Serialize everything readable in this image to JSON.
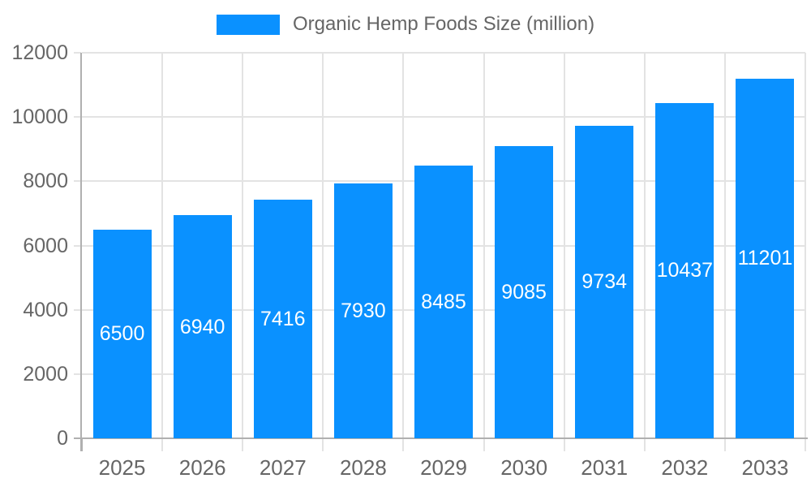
{
  "chart": {
    "legend_label": "Organic Hemp Foods Size (million)"
  },
  "chart_data": {
    "type": "bar",
    "title": "",
    "legend": [
      "Organic Hemp Foods Size (million)"
    ],
    "legend_position": "top",
    "categories": [
      "2025",
      "2026",
      "2027",
      "2028",
      "2029",
      "2030",
      "2031",
      "2032",
      "2033"
    ],
    "values": [
      6500,
      6940,
      7416,
      7930,
      8485,
      9085,
      9734,
      10437,
      11201
    ],
    "bar_value_labels": [
      "6500",
      "6940",
      "7416",
      "7930",
      "8485",
      "9085",
      "9734",
      "10437",
      "11201"
    ],
    "xlabel": "",
    "ylabel": "",
    "ylim": [
      0,
      12000
    ],
    "ytick_step": 2000,
    "ytick_labels": [
      "0",
      "2000",
      "4000",
      "6000",
      "8000",
      "10000",
      "12000"
    ],
    "grid": true,
    "colors": {
      "bar": "#0a91ff",
      "grid": "#e3e3e3",
      "axis": "#b0b0b0",
      "tick_text": "#666666",
      "value_text": "#ffffff",
      "background": "#ffffff"
    }
  }
}
